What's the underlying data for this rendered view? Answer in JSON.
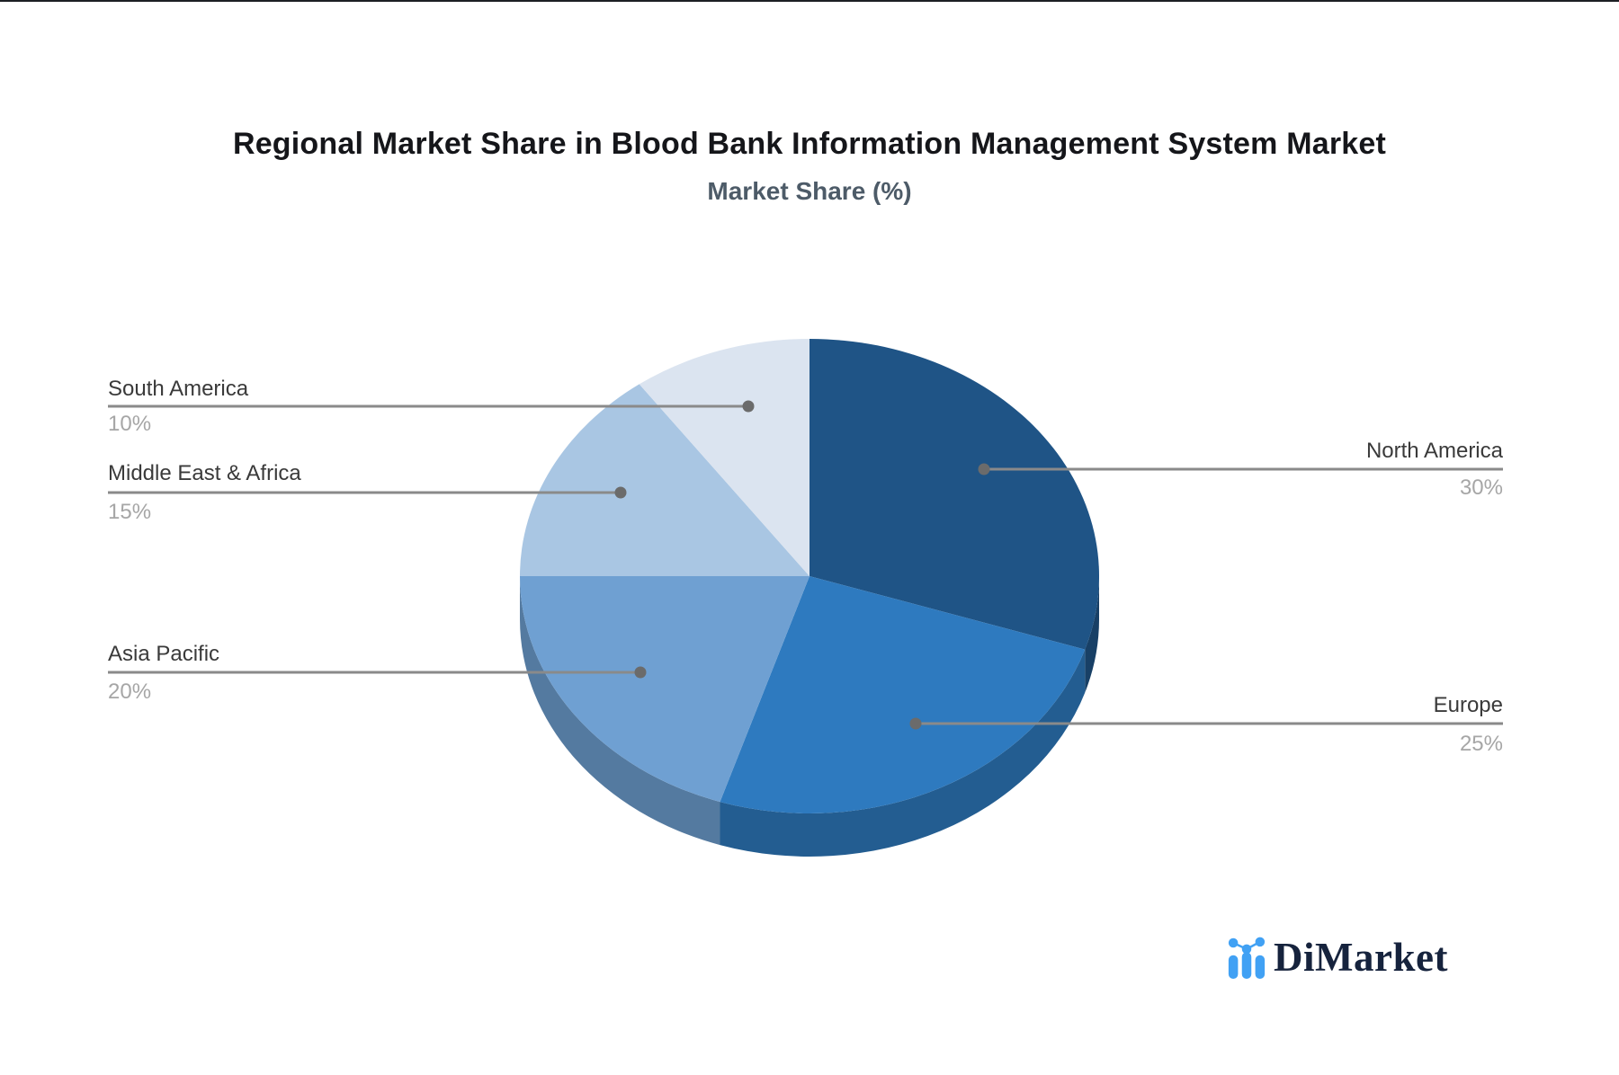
{
  "chart_data": {
    "type": "pie",
    "title": "Regional Market Share in Blood Bank Information Management System Market",
    "subtitle": "Market Share (%)",
    "unit": "%",
    "effect": "3d",
    "start_angle_deg": 0,
    "direction": "clockwise",
    "legend": "none",
    "label_style": "callout-leader-lines",
    "categories": [
      "North America",
      "Europe",
      "Asia Pacific",
      "Middle East & Africa",
      "South America"
    ],
    "values": [
      30,
      25,
      20,
      15,
      10
    ],
    "slices": [
      {
        "label": "North America",
        "value": 30,
        "value_label": "30%",
        "color": "#1F5486"
      },
      {
        "label": "Europe",
        "value": 25,
        "value_label": "25%",
        "color": "#2E7ABF"
      },
      {
        "label": "Asia Pacific",
        "value": 20,
        "value_label": "20%",
        "color": "#6FA0D2"
      },
      {
        "label": "Middle East & Africa",
        "value": 15,
        "value_label": "15%",
        "color": "#A9C6E3"
      },
      {
        "label": "South America",
        "value": 10,
        "value_label": "10%",
        "color": "#DBE4F0"
      }
    ],
    "colors": {
      "leader_line": "#8A8A8A",
      "leader_dot": "#6B6B6B",
      "label_text": "#3A3A3A",
      "value_text": "#A6A6A6",
      "title_text": "#15161A",
      "subtitle_text": "#4D5B68"
    }
  },
  "logo": {
    "text": "DiMarket",
    "icon": "bar-chart-logo-icon",
    "accent_color": "#41A1F4",
    "text_color": "#16233D"
  }
}
